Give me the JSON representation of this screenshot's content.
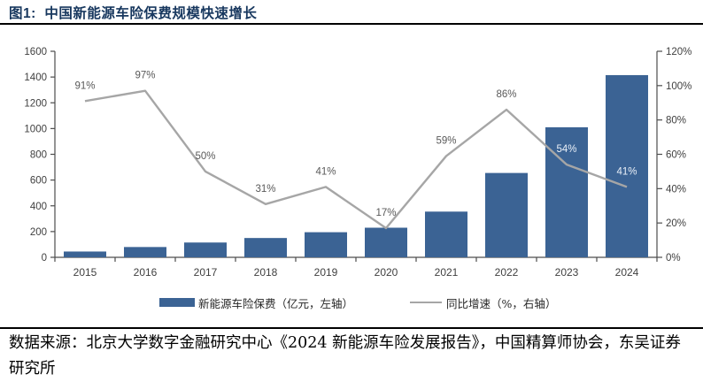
{
  "header": {
    "title": "图1:  中国新能源车险保费规模快速增长"
  },
  "chart_data": {
    "type": "combo-bar-line",
    "title": "中国新能源车险保费规模快速增长",
    "categories": [
      "2015",
      "2016",
      "2017",
      "2018",
      "2019",
      "2020",
      "2021",
      "2022",
      "2023",
      "2024"
    ],
    "series": [
      {
        "name": "新能源车险保费（亿元，左轴）",
        "type": "bar",
        "axis": "left",
        "values": [
          45,
          80,
          115,
          150,
          195,
          230,
          355,
          655,
          1010,
          1415
        ],
        "color": "#3B6394"
      },
      {
        "name": "同比增速（%，右轴）",
        "type": "line",
        "axis": "right",
        "values": [
          91,
          97,
          50,
          31,
          41,
          17,
          59,
          86,
          54,
          41
        ],
        "labels": [
          "91%",
          "97%",
          "50%",
          "31%",
          "41%",
          "17%",
          "59%",
          "86%",
          "54%",
          "41%"
        ],
        "color": "#A6A6A6"
      }
    ],
    "left_axis": {
      "min": 0,
      "max": 1600,
      "step": 200,
      "ticks": [
        "0",
        "200",
        "400",
        "600",
        "800",
        "1000",
        "1200",
        "1400",
        "1600"
      ]
    },
    "right_axis": {
      "min": 0,
      "max": 120,
      "step": 20,
      "suffix": "%",
      "ticks": [
        "0%",
        "20%",
        "40%",
        "60%",
        "80%",
        "100%",
        "120%"
      ]
    },
    "grid": false,
    "legend_position": "bottom-center",
    "label_color_outside": "#595959",
    "label_color_inside": "#EAF0F8"
  },
  "footer": {
    "source": "数据来源：北京大学数字金融研究中心《2024 新能源车险发展报告》，中国精算师协会，东吴证券研究所"
  },
  "colors": {
    "title": "#17375E",
    "bar": "#3B6394",
    "line": "#A6A6A6",
    "axis": "#4D4D4D",
    "tick_label": "#404040",
    "rule": "#000000"
  }
}
